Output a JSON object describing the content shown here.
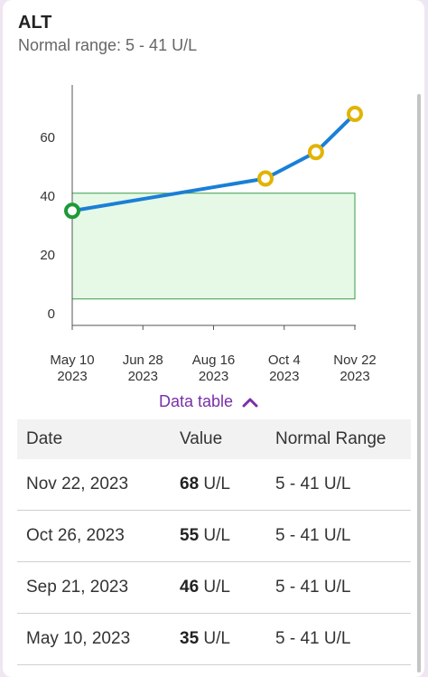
{
  "card": {
    "title": "ALT",
    "subtitle": "Normal range: 5 - 41 U/L"
  },
  "chart_data": {
    "type": "line",
    "title": "",
    "xlabel": "",
    "ylabel": "",
    "x_ticks": [
      {
        "line1": "May 10",
        "line2": "2023",
        "date": "2023-05-10"
      },
      {
        "line1": "Jun 28",
        "line2": "2023",
        "date": "2023-06-28"
      },
      {
        "line1": "Aug 16",
        "line2": "2023",
        "date": "2023-08-16"
      },
      {
        "line1": "Oct 4",
        "line2": "2023",
        "date": "2023-10-04"
      },
      {
        "line1": "Nov 22",
        "line2": "2023",
        "date": "2023-11-22"
      }
    ],
    "y_ticks": [
      0,
      20,
      40,
      60
    ],
    "ylim": [
      0,
      80
    ],
    "normal_range": [
      5,
      41
    ],
    "series": [
      {
        "points": [
          {
            "x": "2023-05-10",
            "y": 35,
            "in_range": true
          },
          {
            "x": "2023-09-21",
            "y": 46,
            "in_range": false
          },
          {
            "x": "2023-10-26",
            "y": 55,
            "in_range": false
          },
          {
            "x": "2023-11-22",
            "y": 68,
            "in_range": false
          }
        ]
      }
    ],
    "colors": {
      "line": "#1a7fd6",
      "in_range_marker": "#1c9a36",
      "out_of_range_marker": "#e1b400",
      "range_fill": "#e6f9e6",
      "range_stroke": "#3a9a4a"
    }
  },
  "data_table": {
    "toggle_label": "Data table",
    "toggle_icon": "chevron-up-icon",
    "headers": {
      "date": "Date",
      "value": "Value",
      "range": "Normal Range"
    },
    "rows": [
      {
        "date": "Nov 22, 2023",
        "value": "68",
        "unit": "U/L",
        "range": "5 - 41 U/L"
      },
      {
        "date": "Oct 26, 2023",
        "value": "55",
        "unit": "U/L",
        "range": "5 - 41 U/L"
      },
      {
        "date": "Sep 21, 2023",
        "value": "46",
        "unit": "U/L",
        "range": "5 - 41 U/L"
      },
      {
        "date": "May 10, 2023",
        "value": "35",
        "unit": "U/L",
        "range": "5 - 41 U/L"
      }
    ]
  }
}
